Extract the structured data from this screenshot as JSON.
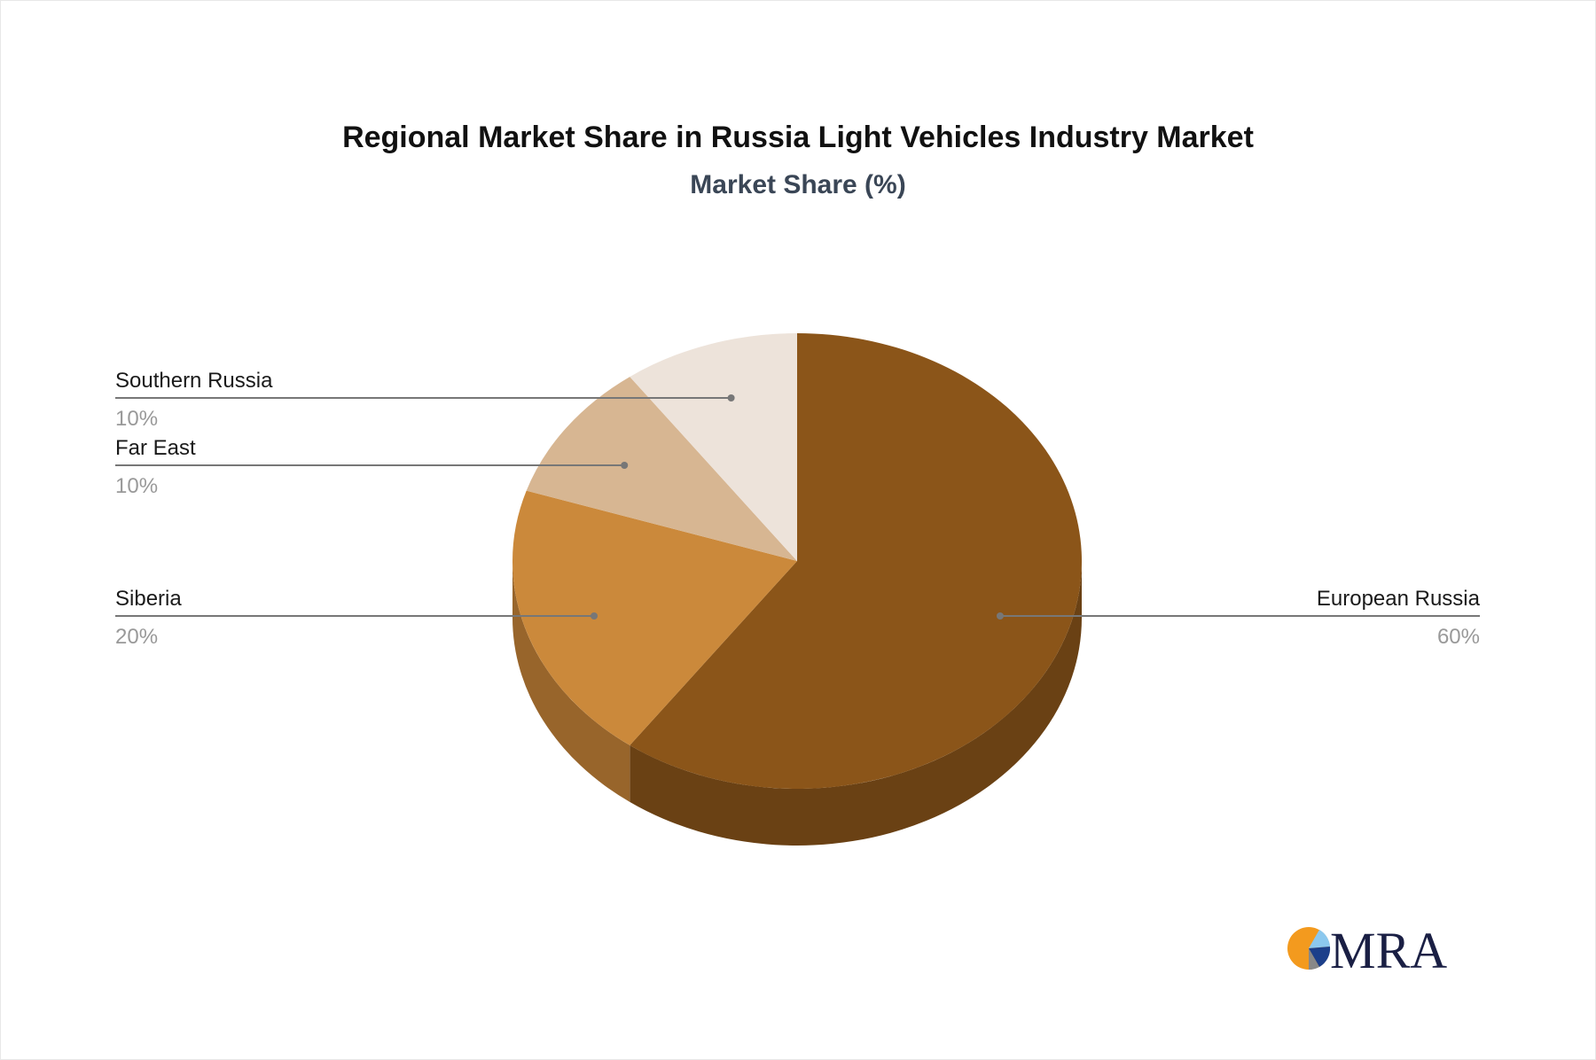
{
  "chart_data": {
    "type": "pie",
    "title": "Regional Market Share in Russia Light Vehicles Industry Market",
    "subtitle": "Market Share (%)",
    "style": "3d",
    "slices": [
      {
        "label": "European Russia",
        "value": 60,
        "value_label": "60%",
        "color": "#8B5519",
        "side_color": "#6A4114",
        "label_side": "right"
      },
      {
        "label": "Siberia",
        "value": 20,
        "value_label": "20%",
        "color": "#CB893B",
        "side_color": "#98652B",
        "label_side": "left"
      },
      {
        "label": "Far East",
        "value": 10,
        "value_label": "10%",
        "color": "#D7B692",
        "side_color": "#A88A6A",
        "label_side": "left"
      },
      {
        "label": "Southern Russia",
        "value": 10,
        "value_label": "10%",
        "color": "#EDE3DA",
        "side_color": "#BFB3A8",
        "label_side": "left"
      }
    ]
  },
  "logo": {
    "text": "MRA",
    "colors": [
      "#F39A1E",
      "#8CC8EE",
      "#1C3F8A",
      "#888888",
      "#1A1F44"
    ]
  }
}
